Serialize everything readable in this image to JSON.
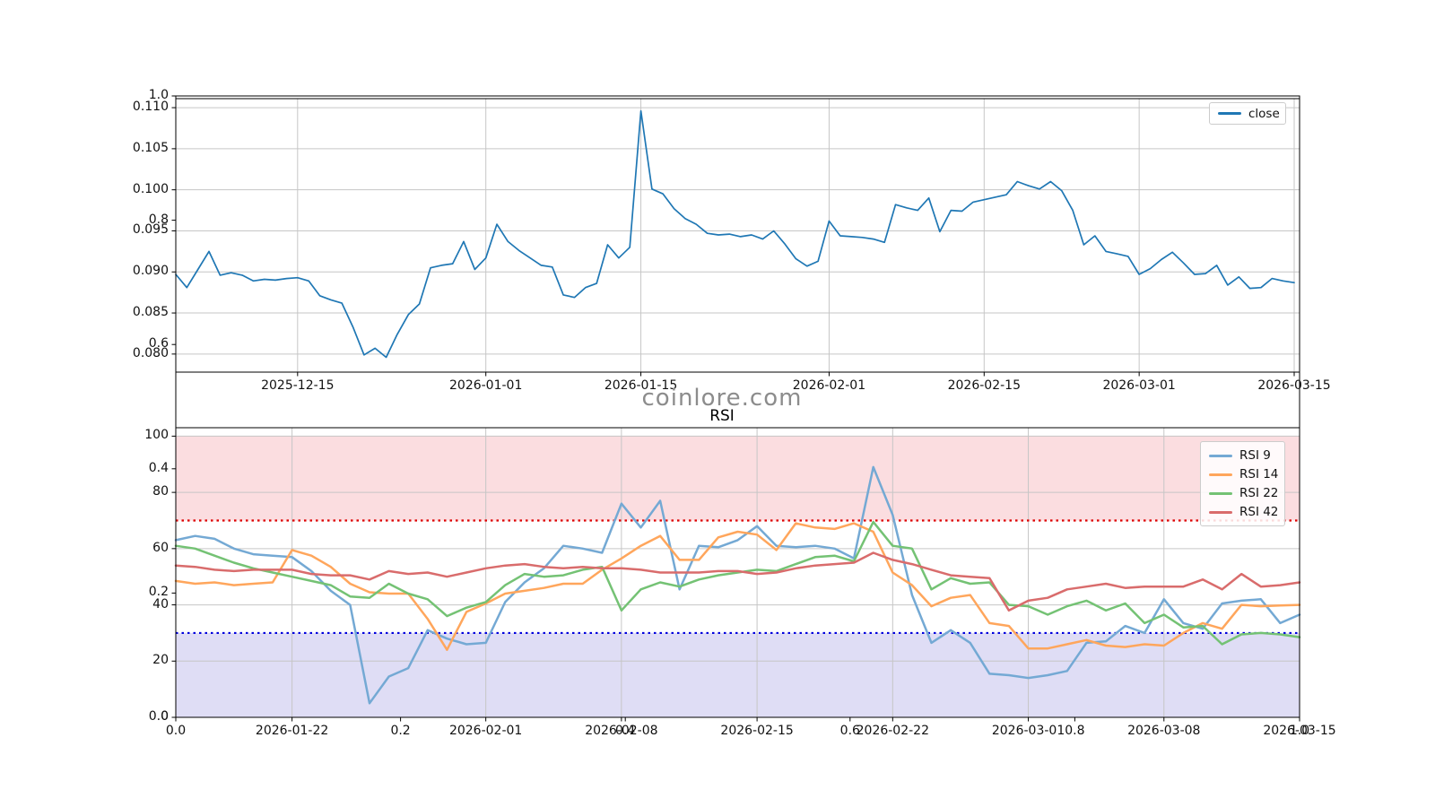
{
  "watermark": "coinlore.com",
  "rsi_title": "RSI",
  "price_legend": {
    "close": "close"
  },
  "colors": {
    "price_line": "#1f77b4",
    "rsi9": "#74a9d4",
    "rsi14": "#ffa65c",
    "rsi22": "#74c274",
    "rsi42": "#d96c6c",
    "overbought_band": "#fbdde0",
    "oversold_band": "#dfddf5",
    "overbought_line": "#dd0000",
    "oversold_line": "#0000dd",
    "grid": "#c6c6c6",
    "spine": "#000000",
    "tick_text": "#111111",
    "watermark_text": "#8c8c8c"
  },
  "chart_data": [
    {
      "type": "line",
      "name": "price",
      "title": "",
      "legend": [
        "close"
      ],
      "legend_position": "upper right",
      "grid": true,
      "ylim": [
        0.0778,
        0.1111
      ],
      "y_ticks": [
        "0.080",
        "0.085",
        "0.090",
        "0.095",
        "0.100",
        "0.105",
        "0.110"
      ],
      "x_ticks": [
        {
          "label": "2025-12-15",
          "index": 11
        },
        {
          "label": "2026-01-01",
          "index": 28
        },
        {
          "label": "2026-01-15",
          "index": 42
        },
        {
          "label": "2026-02-01",
          "index": 59
        },
        {
          "label": "2026-02-15",
          "index": 73
        },
        {
          "label": "2026-03-01",
          "index": 87
        },
        {
          "label": "2026-03-15",
          "index": 101
        }
      ],
      "x_start": "2025-12-04",
      "x_step_days": 1,
      "series": [
        {
          "name": "close",
          "color": "#1f77b4",
          "values": [
            0.0897,
            0.0881,
            0.0903,
            0.0925,
            0.0896,
            0.0899,
            0.0896,
            0.0889,
            0.0891,
            0.089,
            0.0892,
            0.0893,
            0.0889,
            0.0871,
            0.0866,
            0.0862,
            0.0833,
            0.0799,
            0.0807,
            0.0796,
            0.0824,
            0.0848,
            0.0861,
            0.0905,
            0.0908,
            0.091,
            0.0937,
            0.0903,
            0.0917,
            0.0958,
            0.0937,
            0.0926,
            0.0917,
            0.0908,
            0.0906,
            0.0872,
            0.0869,
            0.0881,
            0.0886,
            0.0933,
            0.0917,
            0.093,
            0.1096,
            0.1001,
            0.0995,
            0.0977,
            0.0965,
            0.0958,
            0.0947,
            0.0945,
            0.0946,
            0.0943,
            0.0945,
            0.094,
            0.095,
            0.0934,
            0.0916,
            0.0907,
            0.0913,
            0.0962,
            0.0944,
            0.0943,
            0.0942,
            0.094,
            0.0936,
            0.0982,
            0.0978,
            0.0975,
            0.099,
            0.0949,
            0.0975,
            0.0974,
            0.0985,
            0.0988,
            0.0991,
            0.0994,
            0.101,
            0.1005,
            0.1001,
            0.101,
            0.0999,
            0.0975,
            0.0933,
            0.0944,
            0.0925,
            0.0922,
            0.0919,
            0.0897,
            0.0904,
            0.0915,
            0.0924,
            0.0911,
            0.0897,
            0.0898,
            0.0908,
            0.0884,
            0.0894,
            0.088,
            0.0881,
            0.0892,
            0.0889,
            0.0887
          ]
        }
      ]
    },
    {
      "type": "line",
      "name": "rsi",
      "title": "RSI",
      "legend": [
        "RSI 9",
        "RSI 14",
        "RSI 22",
        "RSI 42"
      ],
      "legend_position": "upper right",
      "grid": true,
      "ylim": [
        0,
        103
      ],
      "y_ticks": [
        "0",
        "20",
        "40",
        "60",
        "80",
        "100"
      ],
      "bands": [
        {
          "from": 70,
          "to": 100,
          "color": "#fbdde0",
          "meaning": "overbought"
        },
        {
          "from": 0,
          "to": 30,
          "color": "#dfddf5",
          "meaning": "oversold"
        }
      ],
      "hlines": [
        {
          "y": 70,
          "color": "#dd0000",
          "style": "dotted"
        },
        {
          "y": 30,
          "color": "#0000dd",
          "style": "dotted"
        }
      ],
      "x_ticks": [
        {
          "label": "2026-01-22",
          "index": 6
        },
        {
          "label": "2026-02-01",
          "index": 16
        },
        {
          "label": "2026-02-08",
          "index": 23
        },
        {
          "label": "2026-02-15",
          "index": 30
        },
        {
          "label": "2026-02-22",
          "index": 37
        },
        {
          "label": "2026-03-01",
          "index": 44
        },
        {
          "label": "2026-03-08",
          "index": 51
        },
        {
          "label": "2026-03-15",
          "index": 58
        }
      ],
      "x_start": "2026-01-16",
      "x_step_days": 1,
      "series": [
        {
          "name": "RSI 9",
          "color": "#74a9d4",
          "values": [
            63,
            64.5,
            63.5,
            60,
            58,
            57.5,
            57,
            52,
            45,
            40,
            5,
            14.5,
            17.5,
            31,
            28,
            26,
            26.5,
            41,
            48,
            53,
            61,
            60,
            58.5,
            76,
            67.5,
            77,
            45.5,
            61,
            60.5,
            63,
            68,
            61,
            60.5,
            61,
            60,
            56.5,
            89,
            72,
            43.5,
            26.5,
            31,
            26.5,
            15.5,
            15,
            14,
            15,
            16.5,
            26.5,
            27,
            32.5,
            30,
            42,
            33.5,
            31.5,
            40.5,
            41.5,
            42,
            33.5,
            36.5
          ]
        },
        {
          "name": "RSI 14",
          "color": "#ffa65c",
          "values": [
            48.5,
            47.5,
            48,
            47,
            47.5,
            48,
            59.5,
            57.5,
            53.5,
            47.5,
            44.5,
            44,
            44,
            35,
            24,
            37.5,
            40.5,
            44,
            45,
            46,
            47.5,
            47.5,
            52.5,
            56.5,
            61,
            64.5,
            56,
            56,
            64,
            66,
            65,
            59.5,
            69,
            67.5,
            67,
            69,
            66,
            51.5,
            47,
            39.5,
            42.5,
            43.5,
            33.5,
            32.5,
            24.5,
            24.5,
            26,
            27.5,
            25.5,
            25,
            26,
            25.5,
            30,
            33.5,
            31.5,
            40,
            39.5,
            39.8,
            40
          ]
        },
        {
          "name": "RSI 22",
          "color": "#74c274",
          "values": [
            61,
            60,
            57.5,
            55,
            53,
            51.5,
            50,
            48.5,
            47,
            43,
            42.5,
            47.5,
            44,
            42,
            36,
            39,
            41,
            47,
            51,
            50,
            50.5,
            52.5,
            53.5,
            38,
            45.5,
            48,
            46.5,
            49,
            50.5,
            51.5,
            52.5,
            52,
            54.5,
            57,
            57.5,
            55.5,
            69.5,
            61,
            60,
            45.5,
            49.5,
            47.5,
            48,
            40,
            39.5,
            36.5,
            39.5,
            41.5,
            38,
            40.5,
            33.5,
            36.5,
            32,
            32.5,
            26,
            29.5,
            30,
            29.5,
            28.5
          ]
        },
        {
          "name": "RSI 42",
          "color": "#d96c6c",
          "values": [
            54,
            53.5,
            52.5,
            52,
            52.5,
            52.5,
            52.5,
            51,
            50.5,
            50.5,
            49,
            52,
            51,
            51.5,
            50,
            51.5,
            53,
            54,
            54.5,
            53.5,
            53,
            53.5,
            53,
            53,
            52.5,
            51.5,
            51.5,
            51.5,
            52,
            52,
            51,
            51.5,
            53,
            54,
            54.5,
            55,
            58.5,
            56,
            54.5,
            52.5,
            50.5,
            50,
            49.5,
            38,
            41.5,
            42.5,
            45.5,
            46.5,
            47.5,
            46,
            46.5,
            46.5,
            46.5,
            49,
            45.5,
            51,
            46.5,
            47,
            48
          ]
        }
      ]
    },
    {
      "type": "overlay-axis",
      "name": "stray-default-axes",
      "x_ticks": [
        "0.0",
        "0.2",
        "0.4",
        "0.6",
        "0.8",
        "1.0"
      ],
      "y_ticks": [
        "0.0",
        "0.2",
        "0.4",
        "0.6",
        "0.8",
        "1.0"
      ]
    }
  ]
}
